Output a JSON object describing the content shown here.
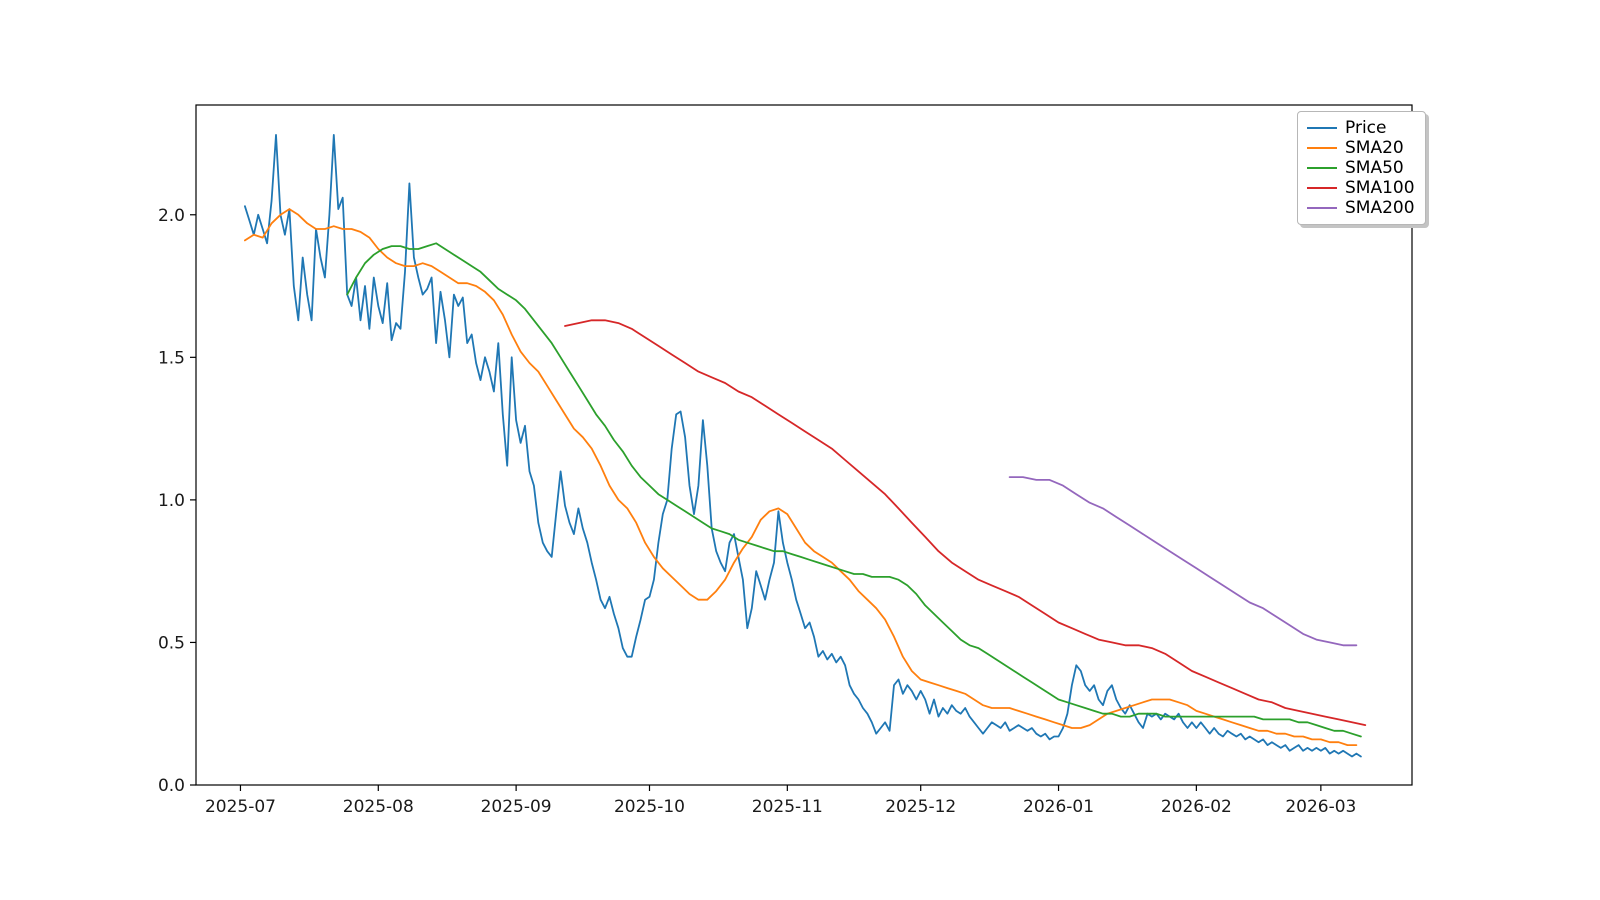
{
  "figure": {
    "background_color": "#ffffff",
    "axes_edge_color": "#000000"
  },
  "chart_data": {
    "type": "line",
    "title": "",
    "xlabel": "",
    "ylabel": "",
    "grid": false,
    "legend_position": "upper right",
    "x_unit": "date (days since 2025-07-01)",
    "xlim": [
      -10,
      263.5
    ],
    "ylim": [
      0,
      2.385
    ],
    "x_tick_days": [
      0,
      31,
      62,
      92,
      123,
      153,
      184,
      215,
      243
    ],
    "x_tick_labels": [
      "2025-07",
      "2025-08",
      "2025-09",
      "2025-10",
      "2025-11",
      "2025-12",
      "2026-01",
      "2026-02",
      "2026-03"
    ],
    "y_tick_values": [
      0.0,
      0.5,
      1.0,
      1.5,
      2.0
    ],
    "y_tick_labels": [
      "0.0",
      "0.5",
      "1.0",
      "1.5",
      "2.0"
    ],
    "series": [
      {
        "name": "Price",
        "color": "#1f77b4",
        "start_day": 1,
        "step": 1,
        "values": [
          2.03,
          1.98,
          1.93,
          2.0,
          1.95,
          1.9,
          2.05,
          2.28,
          2.0,
          1.93,
          2.02,
          1.75,
          1.63,
          1.85,
          1.72,
          1.63,
          1.95,
          1.85,
          1.78,
          2.0,
          2.28,
          2.02,
          2.06,
          1.72,
          1.68,
          1.78,
          1.63,
          1.75,
          1.6,
          1.78,
          1.68,
          1.62,
          1.76,
          1.56,
          1.62,
          1.6,
          1.8,
          2.11,
          1.85,
          1.78,
          1.72,
          1.74,
          1.78,
          1.55,
          1.73,
          1.63,
          1.5,
          1.72,
          1.68,
          1.71,
          1.55,
          1.58,
          1.48,
          1.42,
          1.5,
          1.45,
          1.38,
          1.55,
          1.3,
          1.12,
          1.5,
          1.28,
          1.2,
          1.26,
          1.1,
          1.05,
          0.92,
          0.85,
          0.82,
          0.8,
          0.95,
          1.1,
          0.98,
          0.92,
          0.88,
          0.97,
          0.9,
          0.85,
          0.78,
          0.72,
          0.65,
          0.62,
          0.66,
          0.6,
          0.55,
          0.48,
          0.45,
          0.45,
          0.52,
          0.58,
          0.65,
          0.66,
          0.72,
          0.85,
          0.95,
          1.0,
          1.18,
          1.3,
          1.31,
          1.22,
          1.05,
          0.95,
          1.05,
          1.28,
          1.12,
          0.9,
          0.82,
          0.78,
          0.75,
          0.85,
          0.88,
          0.8,
          0.72,
          0.55,
          0.62,
          0.75,
          0.7,
          0.65,
          0.72,
          0.78,
          0.96,
          0.85,
          0.78,
          0.72,
          0.65,
          0.6,
          0.55,
          0.57,
          0.52,
          0.45,
          0.47,
          0.44,
          0.46,
          0.43,
          0.45,
          0.42,
          0.35,
          0.32,
          0.3,
          0.27,
          0.25,
          0.22,
          0.18,
          0.2,
          0.22,
          0.19,
          0.35,
          0.37,
          0.32,
          0.35,
          0.33,
          0.3,
          0.33,
          0.3,
          0.25,
          0.3,
          0.24,
          0.27,
          0.25,
          0.28,
          0.26,
          0.25,
          0.27,
          0.24,
          0.22,
          0.2,
          0.18,
          0.2,
          0.22,
          0.21,
          0.2,
          0.22,
          0.19,
          0.2,
          0.21,
          0.2,
          0.19,
          0.2,
          0.18,
          0.17,
          0.18,
          0.16,
          0.17,
          0.17,
          0.2,
          0.25,
          0.35,
          0.42,
          0.4,
          0.35,
          0.33,
          0.35,
          0.3,
          0.28,
          0.33,
          0.35,
          0.3,
          0.27,
          0.25,
          0.28,
          0.25,
          0.22,
          0.2,
          0.25,
          0.24,
          0.25,
          0.23,
          0.25,
          0.24,
          0.23,
          0.25,
          0.22,
          0.2,
          0.22,
          0.2,
          0.22,
          0.2,
          0.18,
          0.2,
          0.18,
          0.17,
          0.19,
          0.18,
          0.17,
          0.18,
          0.16,
          0.17,
          0.16,
          0.15,
          0.16,
          0.14,
          0.15,
          0.14,
          0.13,
          0.14,
          0.12,
          0.13,
          0.14,
          0.12,
          0.13,
          0.12,
          0.13,
          0.12,
          0.13,
          0.11,
          0.12,
          0.11,
          0.12,
          0.11,
          0.1,
          0.11,
          0.1
        ]
      },
      {
        "name": "SMA20",
        "color": "#ff7f0e",
        "start_day": 1,
        "step": 2,
        "values": [
          1.91,
          1.93,
          1.92,
          1.97,
          2.0,
          2.02,
          2.0,
          1.97,
          1.95,
          1.95,
          1.96,
          1.95,
          1.95,
          1.94,
          1.92,
          1.88,
          1.85,
          1.83,
          1.82,
          1.82,
          1.83,
          1.82,
          1.8,
          1.78,
          1.76,
          1.76,
          1.75,
          1.73,
          1.7,
          1.65,
          1.58,
          1.52,
          1.48,
          1.45,
          1.4,
          1.35,
          1.3,
          1.25,
          1.22,
          1.18,
          1.12,
          1.05,
          1.0,
          0.97,
          0.92,
          0.85,
          0.8,
          0.76,
          0.73,
          0.7,
          0.67,
          0.65,
          0.65,
          0.68,
          0.72,
          0.78,
          0.83,
          0.87,
          0.93,
          0.96,
          0.97,
          0.95,
          0.9,
          0.85,
          0.82,
          0.8,
          0.78,
          0.75,
          0.72,
          0.68,
          0.65,
          0.62,
          0.58,
          0.52,
          0.45,
          0.4,
          0.37,
          0.36,
          0.35,
          0.34,
          0.33,
          0.32,
          0.3,
          0.28,
          0.27,
          0.27,
          0.27,
          0.26,
          0.25,
          0.24,
          0.23,
          0.22,
          0.21,
          0.2,
          0.2,
          0.21,
          0.23,
          0.25,
          0.26,
          0.27,
          0.28,
          0.29,
          0.3,
          0.3,
          0.3,
          0.29,
          0.28,
          0.26,
          0.25,
          0.24,
          0.23,
          0.22,
          0.21,
          0.2,
          0.19,
          0.19,
          0.18,
          0.18,
          0.17,
          0.17,
          0.16,
          0.16,
          0.15,
          0.15,
          0.14,
          0.14
        ]
      },
      {
        "name": "SMA50",
        "color": "#2ca02c",
        "start_day": 24,
        "step": 2,
        "values": [
          1.72,
          1.78,
          1.83,
          1.86,
          1.88,
          1.89,
          1.89,
          1.88,
          1.88,
          1.89,
          1.9,
          1.88,
          1.86,
          1.84,
          1.82,
          1.8,
          1.77,
          1.74,
          1.72,
          1.7,
          1.67,
          1.63,
          1.59,
          1.55,
          1.5,
          1.45,
          1.4,
          1.35,
          1.3,
          1.26,
          1.21,
          1.17,
          1.12,
          1.08,
          1.05,
          1.02,
          1.0,
          0.98,
          0.96,
          0.94,
          0.92,
          0.9,
          0.89,
          0.88,
          0.86,
          0.85,
          0.84,
          0.83,
          0.82,
          0.82,
          0.81,
          0.8,
          0.79,
          0.78,
          0.77,
          0.76,
          0.75,
          0.74,
          0.74,
          0.73,
          0.73,
          0.73,
          0.72,
          0.7,
          0.67,
          0.63,
          0.6,
          0.57,
          0.54,
          0.51,
          0.49,
          0.48,
          0.46,
          0.44,
          0.42,
          0.4,
          0.38,
          0.36,
          0.34,
          0.32,
          0.3,
          0.29,
          0.28,
          0.27,
          0.26,
          0.25,
          0.25,
          0.24,
          0.24,
          0.25,
          0.25,
          0.25,
          0.24,
          0.24,
          0.24,
          0.24,
          0.24,
          0.24,
          0.24,
          0.24,
          0.24,
          0.24,
          0.24,
          0.23,
          0.23,
          0.23,
          0.23,
          0.22,
          0.22,
          0.21,
          0.2,
          0.19,
          0.19,
          0.18,
          0.17
        ]
      },
      {
        "name": "SMA100",
        "color": "#d62728",
        "start_day": 73,
        "step": 3,
        "values": [
          1.61,
          1.62,
          1.63,
          1.63,
          1.62,
          1.6,
          1.57,
          1.54,
          1.51,
          1.48,
          1.45,
          1.43,
          1.41,
          1.38,
          1.36,
          1.33,
          1.3,
          1.27,
          1.24,
          1.21,
          1.18,
          1.14,
          1.1,
          1.06,
          1.02,
          0.97,
          0.92,
          0.87,
          0.82,
          0.78,
          0.75,
          0.72,
          0.7,
          0.68,
          0.66,
          0.63,
          0.6,
          0.57,
          0.55,
          0.53,
          0.51,
          0.5,
          0.49,
          0.49,
          0.48,
          0.46,
          0.43,
          0.4,
          0.38,
          0.36,
          0.34,
          0.32,
          0.3,
          0.29,
          0.27,
          0.26,
          0.25,
          0.24,
          0.23,
          0.22,
          0.21
        ]
      },
      {
        "name": "SMA200",
        "color": "#9467bd",
        "start_day": 173,
        "step": 3,
        "values": [
          1.08,
          1.08,
          1.07,
          1.07,
          1.05,
          1.02,
          0.99,
          0.97,
          0.94,
          0.91,
          0.88,
          0.85,
          0.82,
          0.79,
          0.76,
          0.73,
          0.7,
          0.67,
          0.64,
          0.62,
          0.59,
          0.56,
          0.53,
          0.51,
          0.5,
          0.49,
          0.49
        ]
      }
    ]
  }
}
